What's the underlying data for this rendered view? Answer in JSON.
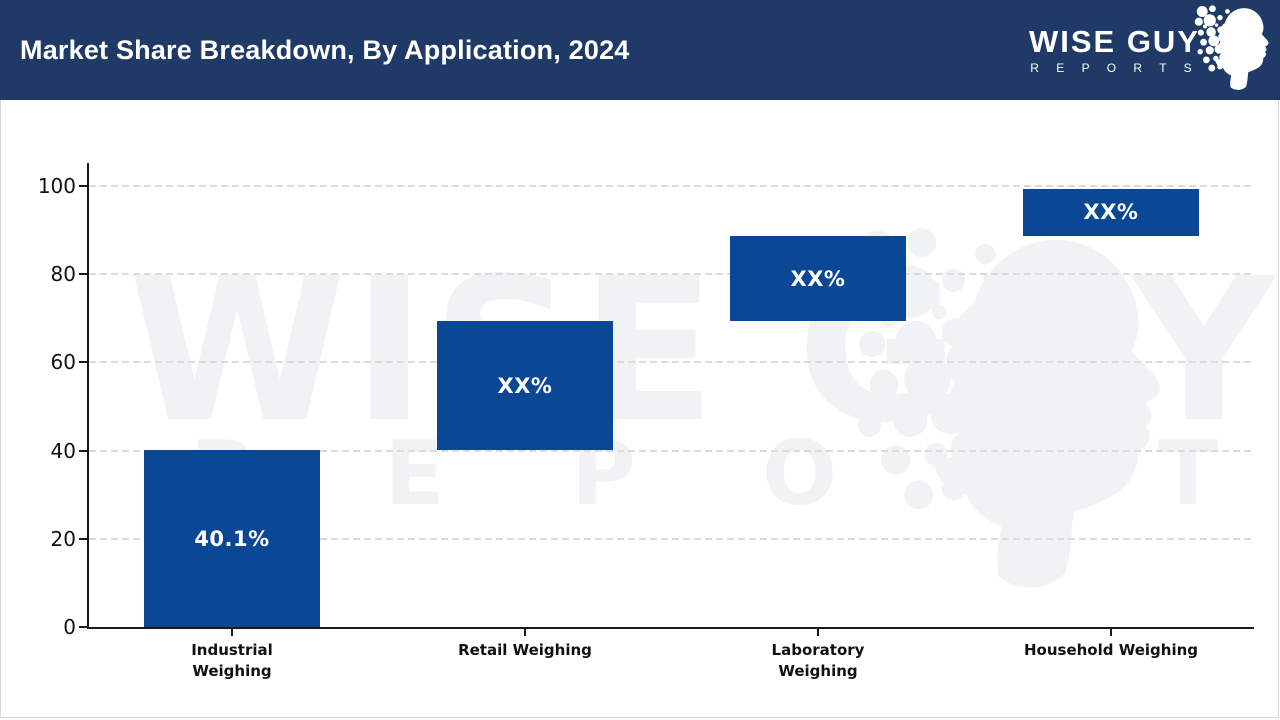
{
  "header": {
    "title": "Market Share Breakdown, By Application, 2024",
    "bg_color": "#1f3a66",
    "logo": {
      "name": "WISE GUY",
      "sub": "R E P O R T S"
    }
  },
  "watermark": {
    "line1": "WISE GUY",
    "line2": "R E P O R T S",
    "color": "#f1f2f4"
  },
  "chart_data": {
    "type": "bar",
    "subtype": "waterfall",
    "title": "Market Share Breakdown, By Application, 2024",
    "categories": [
      "Industrial\nWeighing",
      "Retail Weighing",
      "Laboratory\nWeighing",
      "Household Weighing"
    ],
    "segments": [
      {
        "category": "Industrial Weighing",
        "start": 0,
        "end": 40.1,
        "label": "40.1%"
      },
      {
        "category": "Retail Weighing",
        "start": 40.1,
        "end": 69.3,
        "label": "XX%"
      },
      {
        "category": "Laboratory Weighing",
        "start": 69.3,
        "end": 88.7,
        "label": "XX%"
      },
      {
        "category": "Household Weighing",
        "start": 88.7,
        "end": 99.3,
        "label": "XX%"
      }
    ],
    "xlabel": "",
    "ylabel": "",
    "yticks": [
      0,
      20,
      40,
      60,
      80,
      100
    ],
    "ylim": [
      0,
      105
    ],
    "grid": "horizontal-dashed",
    "grid_color": "#dcdcdc",
    "bar_color": "#0a4795",
    "bar_label_color": "#ffffff",
    "axis_color": "#1a1a1a"
  }
}
